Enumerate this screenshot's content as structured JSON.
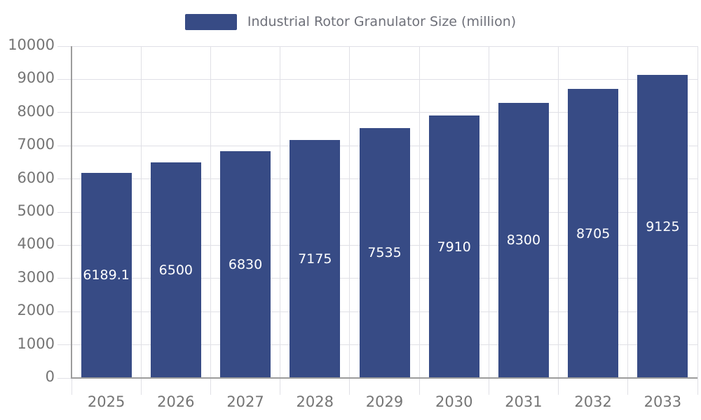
{
  "legend": {
    "label": "Industrial Rotor Granulator Size (million)"
  },
  "chart_data": {
    "type": "bar",
    "title": "Industrial Rotor Granulator Size (million)",
    "categories": [
      "2025",
      "2026",
      "2027",
      "2028",
      "2029",
      "2030",
      "2031",
      "2032",
      "2033"
    ],
    "series": [
      {
        "name": "Industrial Rotor Granulator Size (million)",
        "values": [
          6189.1,
          6500,
          6830,
          7175,
          7535,
          7910,
          8300,
          8705,
          9125
        ]
      }
    ],
    "bar_labels": [
      "6189.1",
      "6500",
      "6830",
      "7175",
      "7535",
      "7910",
      "8300",
      "8705",
      "9125"
    ],
    "xlabel": "",
    "ylabel": "",
    "ylim": [
      0,
      10000
    ],
    "ytick_interval": 1000,
    "ytick_labels": [
      "0",
      "1000",
      "2000",
      "3000",
      "4000",
      "5000",
      "6000",
      "7000",
      "8000",
      "9000",
      "10000"
    ],
    "grid": true,
    "legend_position": "top",
    "colors": {
      "bar": "#374B85",
      "grid": "#E0E0E6",
      "axis": "#9C9C9C",
      "tick_label": "#757575",
      "legend_text": "#6E7079",
      "bar_label": "#FFFFFF",
      "background": "#FFFFFF"
    }
  }
}
